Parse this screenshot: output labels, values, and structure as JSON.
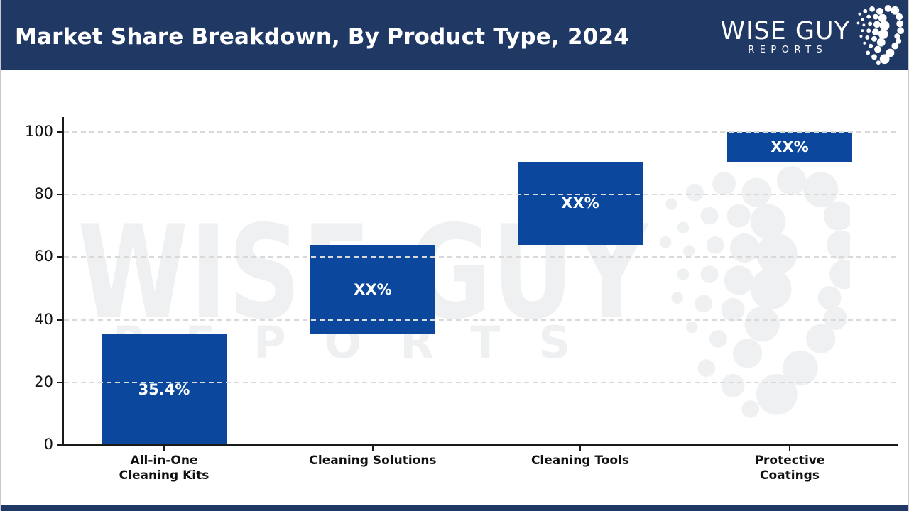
{
  "header": {
    "title": "Market Share Breakdown, By Product Type, 2024",
    "logo": {
      "line1": "WISE GUY",
      "line2": "REPORTS"
    }
  },
  "watermark": {
    "line1": "WISE GUY",
    "line2": "REPORTS"
  },
  "footer": {},
  "chart_data": {
    "type": "bar",
    "subtype": "waterfall",
    "title": "Market Share Breakdown, By Product Type, 2024",
    "categories": [
      "All-in-One\nCleaning Kits",
      "Cleaning Solutions",
      "Cleaning Tools",
      "Protective\nCoatings"
    ],
    "segments": [
      {
        "start": 0,
        "end": 35.4,
        "label": "35.4%"
      },
      {
        "start": 35.4,
        "end": 64,
        "label": "XX%"
      },
      {
        "start": 64,
        "end": 90.5,
        "label": "XX%"
      },
      {
        "start": 90.5,
        "end": 100,
        "label": "XX%"
      }
    ],
    "yticks": [
      0,
      20,
      40,
      60,
      80,
      100
    ],
    "ylim": [
      0,
      105
    ],
    "grid": "dashed horizontal",
    "legend": "none",
    "bar_color": "#0a479d",
    "bar_label_color": "#ffffff",
    "header_color": "#203864",
    "watermark_color": "#eff0f1"
  }
}
